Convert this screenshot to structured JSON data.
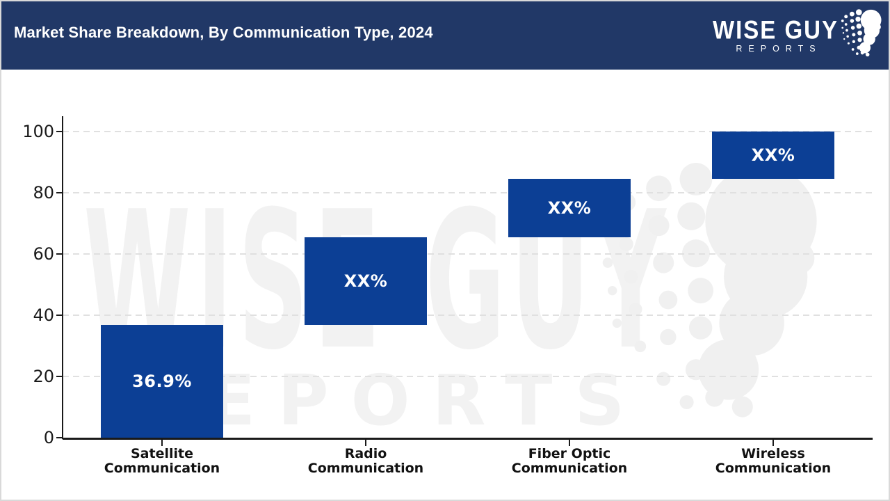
{
  "header": {
    "title": "Market Share Breakdown, By Communication Type, 2024",
    "logo": {
      "line1": "WISE GUY",
      "line2": "REPORTS"
    }
  },
  "watermark": {
    "line1": "WISE GUY",
    "line2": "REPORTS"
  },
  "colors": {
    "header_bg": "#213867",
    "bar": "#0c3f95",
    "bar_label": "#ffffff",
    "axis": "#1a1a1a",
    "grid": "#e0e0e0",
    "tick_label": "#1a1a1a",
    "category_label": "#111111",
    "watermark": "#f2f2f2",
    "canvas_border": "#d9d9d9",
    "logo_text": "#ffffff"
  },
  "chart_data": {
    "type": "bar",
    "subtype": "waterfall",
    "title": "Market Share Breakdown, By Communication Type, 2024",
    "xlabel": "",
    "ylabel": "",
    "ylim": [
      0,
      100
    ],
    "yticks": [
      0,
      20,
      40,
      60,
      80,
      100
    ],
    "grid": "dashed-horizontal",
    "legend": "none",
    "categories": [
      "Satellite Communication",
      "Radio Communication",
      "Fiber Optic Communication",
      "Wireless Communication"
    ],
    "series": [
      {
        "category": "Satellite Communication",
        "category_lines": [
          "Satellite",
          "Communication"
        ],
        "start": 0,
        "end": 36.9,
        "value": 36.9,
        "bar_label": "36.9%"
      },
      {
        "category": "Radio Communication",
        "category_lines": [
          "Radio",
          "Communication"
        ],
        "start": 36.9,
        "end": 65.4,
        "value": 28.5,
        "bar_label": "XX%"
      },
      {
        "category": "Fiber Optic Communication",
        "category_lines": [
          "Fiber Optic",
          "Communication"
        ],
        "start": 65.4,
        "end": 84.5,
        "value": 19.1,
        "bar_label": "XX%"
      },
      {
        "category": "Wireless Communication",
        "category_lines": [
          "Wireless",
          "Communication"
        ],
        "start": 84.5,
        "end": 100,
        "value": 15.5,
        "bar_label": "XX%"
      }
    ]
  }
}
